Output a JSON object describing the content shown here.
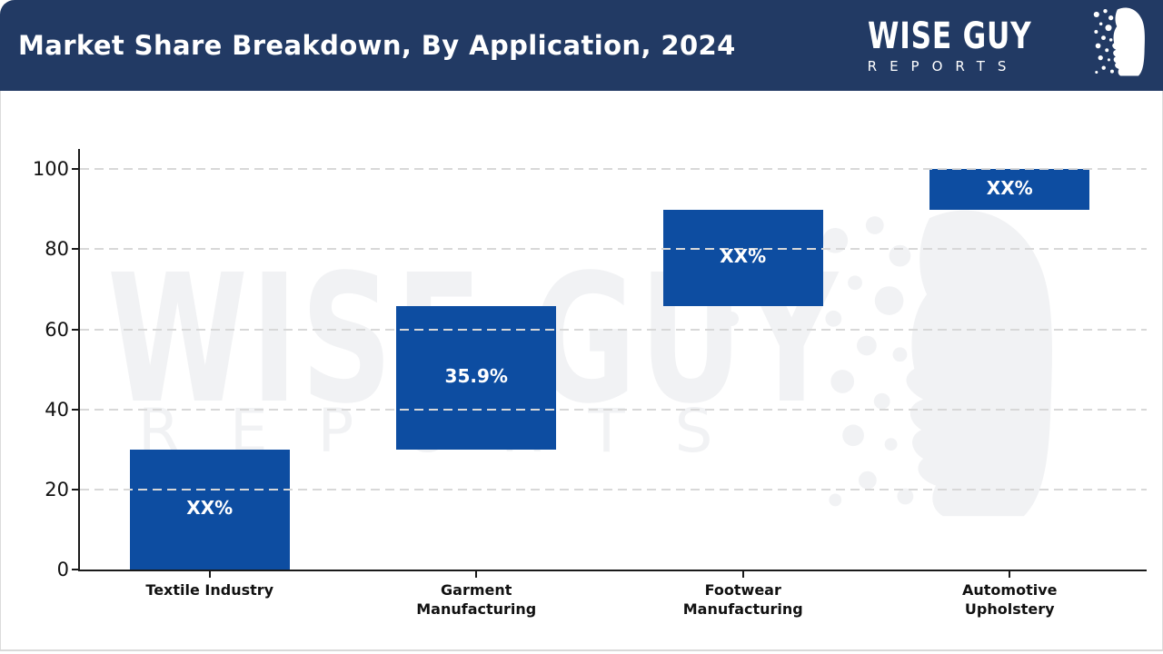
{
  "header": {
    "title": "Market Share Breakdown, By Application, 2024",
    "logo": {
      "wordmark": "WISE GUY",
      "reports": "REPORTS",
      "face_icon": "dotted-head-profile"
    }
  },
  "watermark": {
    "wordmark": "WISE GUY",
    "reports": "REPORTS",
    "face_icon": "dotted-head-profile"
  },
  "chart_data": {
    "type": "bar",
    "subtype": "floating-segment-waterfall",
    "title": "Market Share Breakdown, By Application, 2024",
    "categories": [
      "Textile Industry",
      "Garment Manufacturing",
      "Footwear Manufacturing",
      "Automotive Upholstery"
    ],
    "bars": [
      {
        "category_lines": [
          "Textile Industry"
        ],
        "start": 0,
        "end": 30,
        "label": "XX%"
      },
      {
        "category_lines": [
          "Garment",
          "Manufacturing"
        ],
        "start": 30,
        "end": 65.9,
        "label": "35.9%"
      },
      {
        "category_lines": [
          "Footwear",
          "Manufacturing"
        ],
        "start": 65.9,
        "end": 89.8,
        "label": "XX%"
      },
      {
        "category_lines": [
          "Automotive",
          "Upholstery"
        ],
        "start": 89.8,
        "end": 100,
        "label": "XX%"
      }
    ],
    "y_ticks": [
      0,
      20,
      40,
      60,
      80,
      100
    ],
    "ylim": [
      0,
      105
    ],
    "xlabel": "",
    "ylabel": "",
    "legend": "none",
    "grid": "horizontal-dashed-above-bars",
    "colors": {
      "bar": "#0d4da1",
      "bar_label": "#ffffff",
      "grid": "#d8d8d8",
      "axis": "#1a1a1a",
      "tick_label": "#111111",
      "header_bg": "#223a64",
      "watermark": "#f1f2f4"
    }
  }
}
